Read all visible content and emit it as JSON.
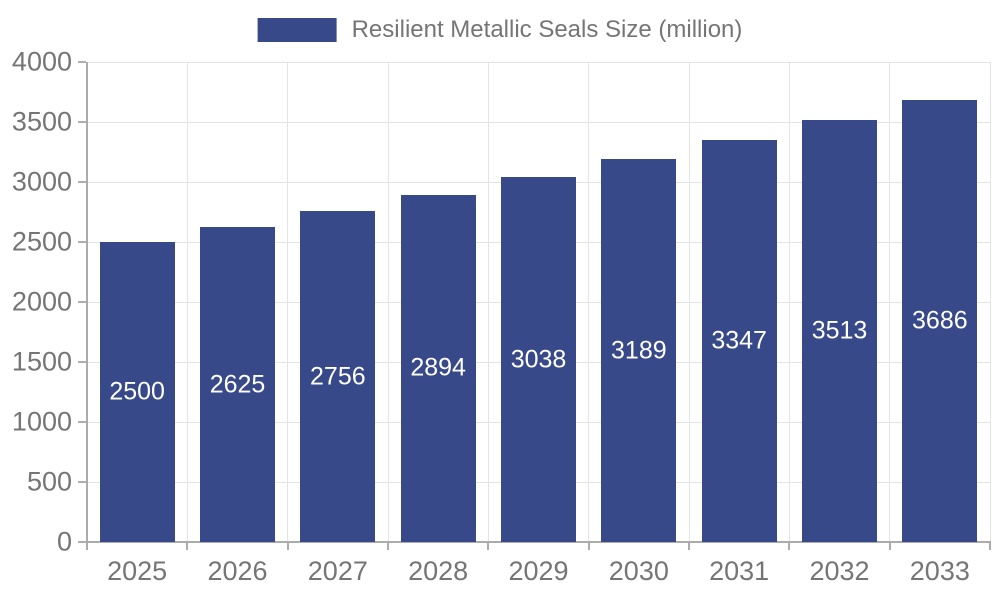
{
  "chart_data": {
    "type": "bar",
    "title": "Resilient Metallic Seals Size (million)",
    "legend_entries": [
      "Resilient Metallic Seals Size (million)"
    ],
    "legend_position": "top",
    "categories": [
      "2025",
      "2026",
      "2027",
      "2028",
      "2029",
      "2030",
      "2031",
      "2032",
      "2033"
    ],
    "values": [
      2500,
      2625,
      2756,
      2894,
      3038,
      3189,
      3347,
      3513,
      3686
    ],
    "bar_value_labels": [
      "2500",
      "2625",
      "2756",
      "2894",
      "3038",
      "3189",
      "3347",
      "3513",
      "3686"
    ],
    "xlabel": "",
    "ylabel": "",
    "ylim": [
      0,
      4000
    ],
    "ytick_step": 500,
    "ytick_labels": [
      "0",
      "500",
      "1000",
      "1500",
      "2000",
      "2500",
      "3000",
      "3500",
      "4000"
    ],
    "grid": true,
    "colors": {
      "bar": "#38498A",
      "bar_label": "#FFFFFF",
      "axis_text": "#757575",
      "legend_text": "#757575",
      "grid_line": "#E4E4E4",
      "axis_line": "#ACACAC",
      "background": "#FFFFFF"
    }
  }
}
